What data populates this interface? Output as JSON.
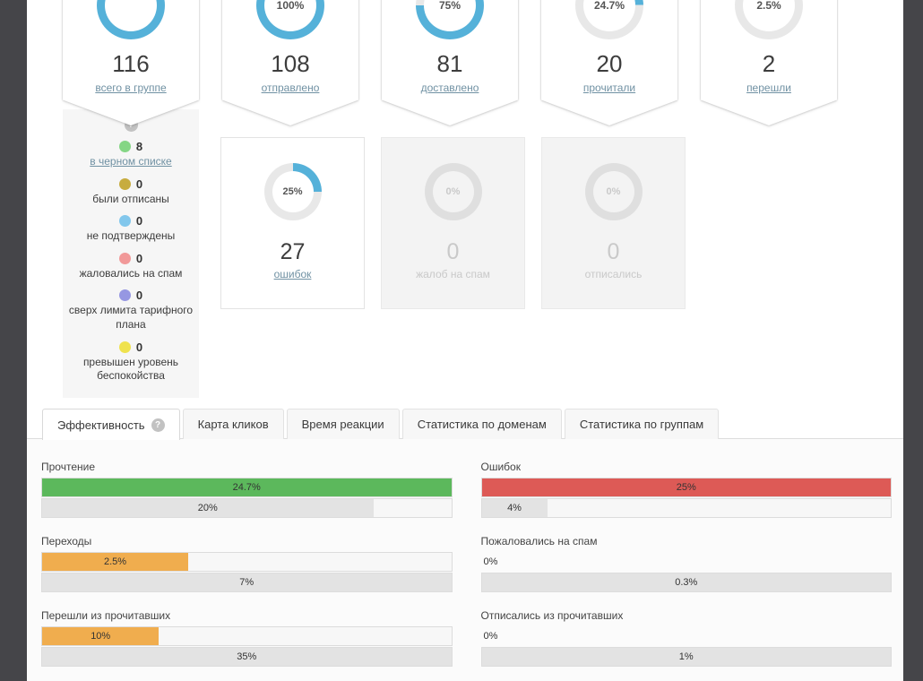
{
  "theme": {
    "accent_blue": "#55b1d9",
    "green": "#5cb85c",
    "orange": "#f0ad4e",
    "red": "#dd5a56",
    "edge_strip": "#454549"
  },
  "icons": {
    "help": "?"
  },
  "summary_cards": [
    {
      "percent": "",
      "value": "116",
      "label": "всего в группе",
      "progress": 100
    },
    {
      "percent": "100%",
      "value": "108",
      "label": "отправлено",
      "progress": 100
    },
    {
      "percent": "75%",
      "value": "81",
      "label": "доставлено",
      "progress": 75
    },
    {
      "percent": "24.7%",
      "value": "20",
      "label": "прочитали",
      "progress": 24.7
    },
    {
      "percent": "2.5%",
      "value": "2",
      "label": "перешли",
      "progress": 2.5
    }
  ],
  "blacklist_panel": {
    "items": [
      {
        "color": "#85d685",
        "value": "8",
        "label": "в черном списке"
      },
      {
        "color": "#c7ac3f",
        "value": "0",
        "label": "были отписаны"
      },
      {
        "color": "#82c7ec",
        "value": "0",
        "label": "не подтверждены"
      },
      {
        "color": "#f19999",
        "value": "0",
        "label": "жаловались на спам"
      },
      {
        "color": "#9697e2",
        "value": "0",
        "label": "сверх лимита тарифного плана"
      },
      {
        "color": "#efe24e",
        "value": "0",
        "label": "превышен уровень беспокойства"
      }
    ]
  },
  "detail_cards": [
    {
      "percent": "25%",
      "value": "27",
      "label": "ошибок",
      "progress": 25,
      "disabled": false
    },
    {
      "percent": "0%",
      "value": "0",
      "label": "жалоб на спам",
      "progress": 0,
      "disabled": true
    },
    {
      "percent": "0%",
      "value": "0",
      "label": "отписались",
      "progress": 0,
      "disabled": true
    }
  ],
  "tabs": [
    {
      "label": "Эффективность",
      "active": true
    },
    {
      "label": "Карта кликов",
      "active": false
    },
    {
      "label": "Время реакции",
      "active": false
    },
    {
      "label": "Статистика по доменам",
      "active": false
    },
    {
      "label": "Статистика по группам",
      "active": false
    }
  ],
  "effectiveness": {
    "left": [
      {
        "label": "Прочтение",
        "value": 24.7,
        "value_label": "24.7%",
        "compare": 20,
        "compare_label": "20%",
        "color": "green"
      },
      {
        "label": "Переходы",
        "value": 2.5,
        "value_label": "2.5%",
        "compare": 7,
        "compare_label": "7%",
        "color": "orange"
      },
      {
        "label": "Перешли из прочитавших",
        "value": 10,
        "value_label": "10%",
        "compare": 35,
        "compare_label": "35%",
        "color": "orange"
      }
    ],
    "right": [
      {
        "label": "Ошибок",
        "value": 25,
        "value_label": "25%",
        "compare": 4,
        "compare_label": "4%",
        "color": "red"
      },
      {
        "label": "Пожаловались на спам",
        "value": 0,
        "value_label": "0%",
        "compare": 0.3,
        "compare_label": "0.3%",
        "color": "none"
      },
      {
        "label": "Отписались из прочитавших",
        "value": 0,
        "value_label": "0%",
        "compare": 1,
        "compare_label": "1%",
        "color": "none"
      }
    ]
  }
}
